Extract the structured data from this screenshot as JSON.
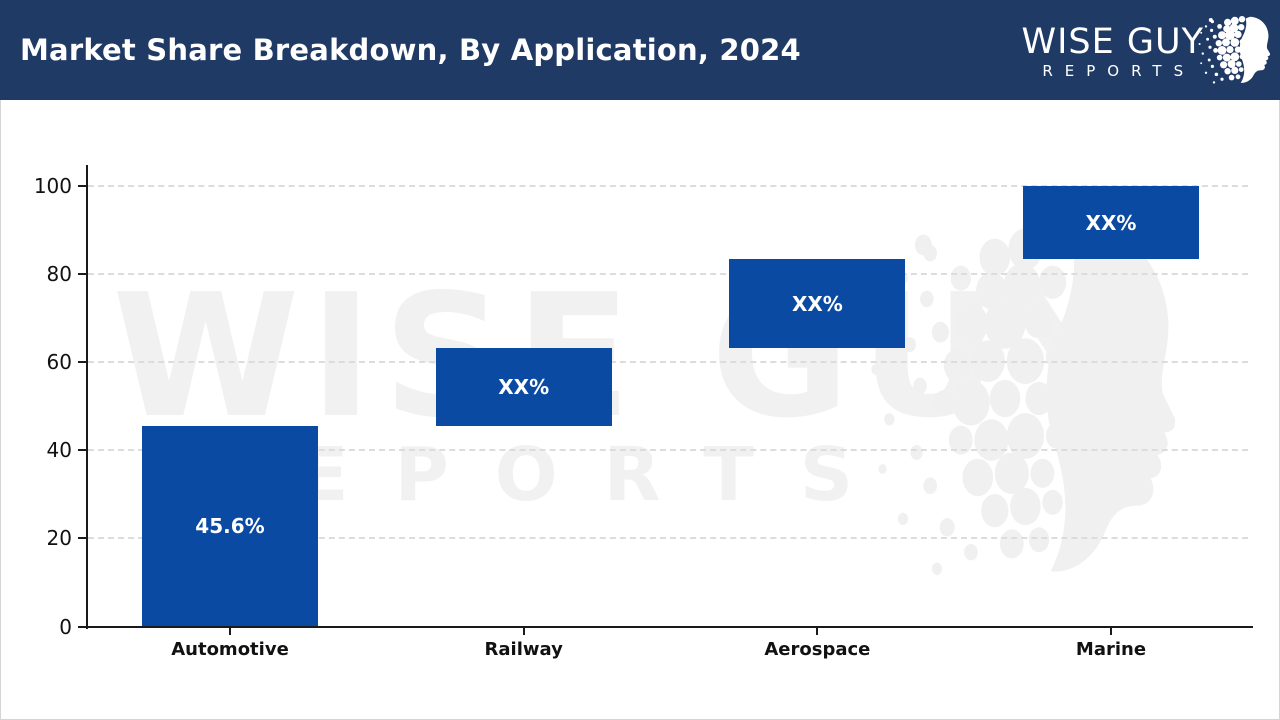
{
  "header": {
    "title": "Market Share Breakdown, By Application, 2024",
    "bg_color": "#203a66"
  },
  "logo": {
    "name": "WISE GUY",
    "sub": "REPORTS"
  },
  "watermark": {
    "line1": "WISE GUY",
    "line2": "REPORTS"
  },
  "chart_data": {
    "type": "bar",
    "subtype": "waterfall-floating-bars",
    "title": "Market Share Breakdown, By Application, 2024",
    "categories": [
      "Automotive",
      "Railway",
      "Aerospace",
      "Marine"
    ],
    "segments": [
      {
        "category": "Automotive",
        "start": 0,
        "end": 45.6,
        "label": "45.6%"
      },
      {
        "category": "Railway",
        "start": 45.6,
        "end": 63.2,
        "label": "XX%"
      },
      {
        "category": "Aerospace",
        "start": 63.2,
        "end": 83.4,
        "label": "XX%"
      },
      {
        "category": "Marine",
        "start": 83.4,
        "end": 100,
        "label": "XX%"
      }
    ],
    "xlabel": "",
    "ylabel": "",
    "ylim": [
      0,
      104.8
    ],
    "yticks": [
      0,
      20,
      40,
      60,
      80,
      100
    ],
    "grid": "horizontal-dashed",
    "legend": "none",
    "bar_color": "#0b4aa2",
    "bar_label_color": "#ffffff",
    "axis_color": "#1a1a1a",
    "grid_color": "#dcdcdc"
  }
}
